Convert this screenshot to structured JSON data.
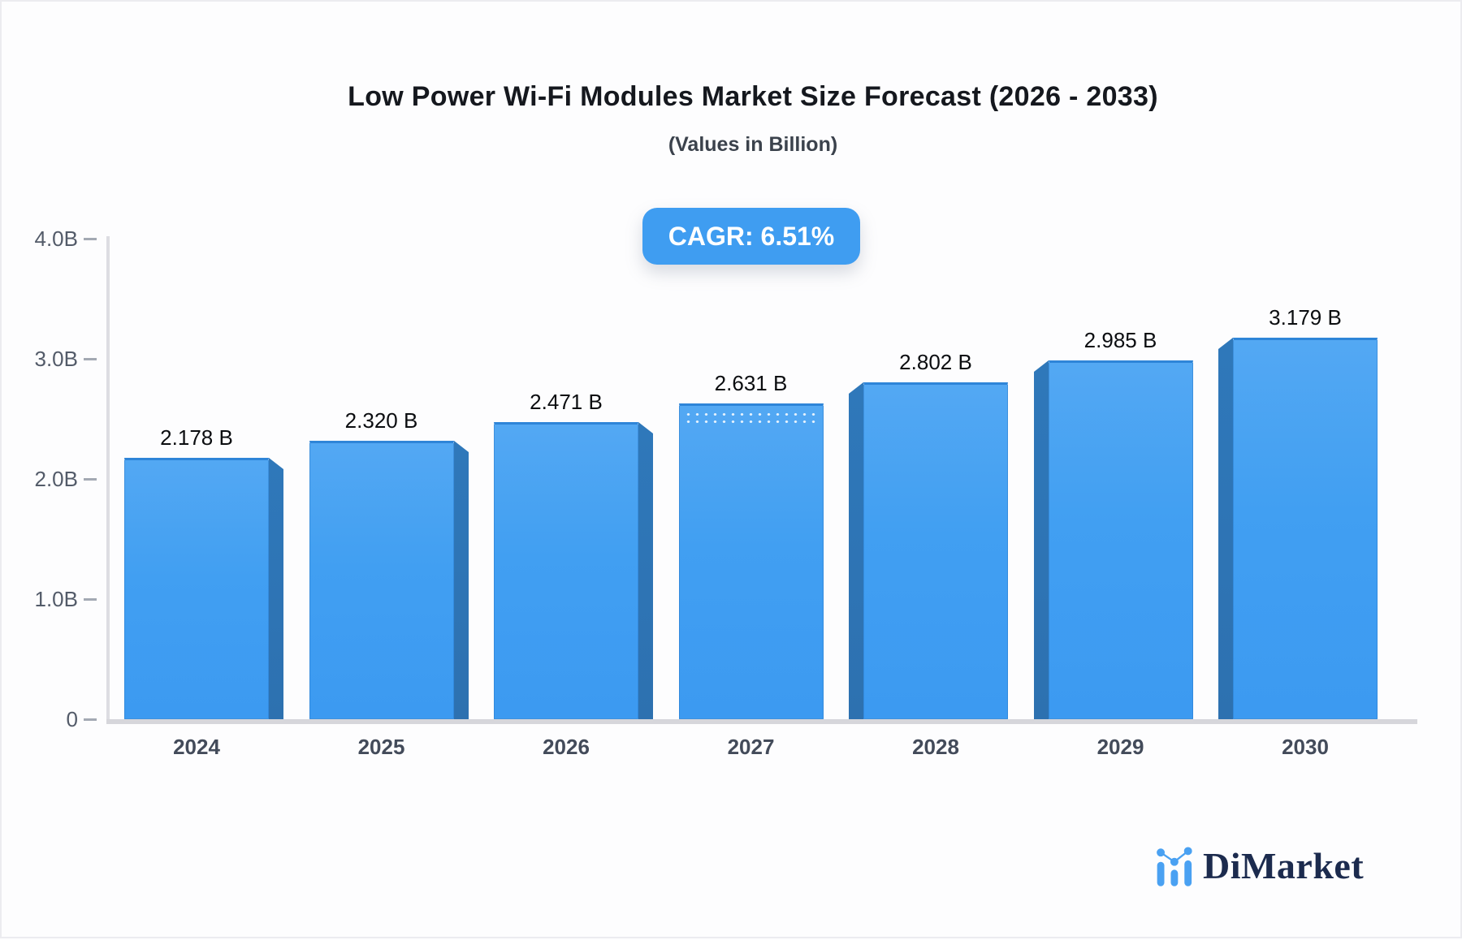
{
  "header": {
    "title": "Low Power Wi-Fi Modules Market Size Forecast (2026 - 2033)",
    "subtitle": "(Values in Billion)"
  },
  "badge": {
    "label": "CAGR: 6.51%"
  },
  "chart_data": {
    "type": "bar",
    "title": "Low Power Wi-Fi Modules Market Size Forecast (2026 - 2033)",
    "subtitle": "(Values in Billion)",
    "categories": [
      "2024",
      "2025",
      "2026",
      "2027",
      "2028",
      "2029",
      "2030"
    ],
    "values": [
      2.178,
      2.32,
      2.471,
      2.631,
      2.802,
      2.985,
      3.179
    ],
    "value_labels": [
      "2.178 B",
      "2.320 B",
      "2.471 B",
      "2.631 B",
      "2.802 B",
      "2.985 B",
      "3.179 B"
    ],
    "cagr": "CAGR: 6.51%",
    "xlabel": "",
    "ylabel": "",
    "ylim": [
      0,
      4.0
    ],
    "ytick_values": [
      0,
      1,
      2,
      3,
      4
    ],
    "ytick_labels": [
      "0",
      "1.0B",
      "2.0B",
      "3.0B",
      "4.0B"
    ],
    "grid": false,
    "legend": false,
    "style": "3d-perspective-bars, center bar has dotted forecast band",
    "colors": {
      "bar_face": "#429ef2",
      "bar_face_highlight": "#53a8f3",
      "bar_side": "#2d71b0",
      "bar_top_edge": "#2e85d8",
      "badge_bg": "#3f9df1",
      "badge_text": "#ffffff",
      "axis_line": "#d9d9de",
      "tick_text": "#535b69",
      "value_text": "#0b0d10",
      "title_text": "#15181e"
    }
  },
  "branding": {
    "name": "DiMarket",
    "icon": "bar-chart-logo-icon",
    "color": "#1c2b4e",
    "icon_color": "#4aa1f2"
  }
}
